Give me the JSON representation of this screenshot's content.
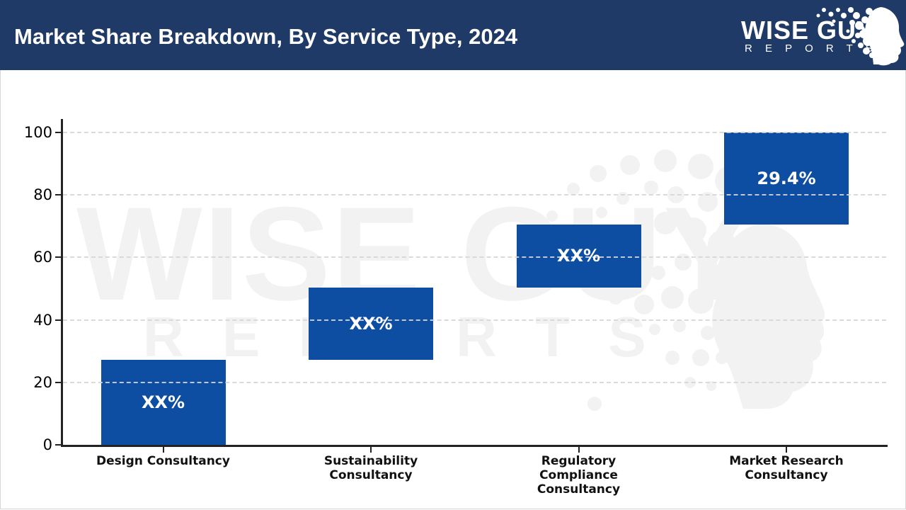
{
  "header": {
    "title": "Market Share Breakdown, By Service Type, 2024",
    "background_color": "#1f3a67",
    "logo": {
      "line1": "WISE GUY",
      "line2": "R E P O R T S"
    }
  },
  "watermark": {
    "line1": "WISE GUY",
    "line2": "R E P O R T S"
  },
  "chart_data": {
    "type": "bar",
    "subtype": "floating-segment waterfall of market share percentages",
    "title": "Market Share Breakdown, By Service Type, 2024",
    "xlabel": "",
    "ylabel": "",
    "ylim": [
      0,
      100
    ],
    "yticks": [
      0,
      20,
      40,
      60,
      80,
      100
    ],
    "grid": "horizontal dashed gridlines",
    "legend": "none",
    "bar_color": "#0d4da2",
    "bar_label_color": "#ffffff",
    "categories": [
      "Design Consultancy",
      "Sustainability Consultancy",
      "Regulatory Compliance Consultancy",
      "Market Research Consultancy"
    ],
    "segments": [
      {
        "category": "Design Consultancy",
        "category_lines": [
          "Design Consultancy"
        ],
        "start": 0,
        "end": 27.2,
        "value": 27.2,
        "label": "XX%"
      },
      {
        "category": "Sustainability Consultancy",
        "category_lines": [
          "Sustainability",
          "Consultancy"
        ],
        "start": 27.2,
        "end": 50.3,
        "value": 23.1,
        "label": "XX%"
      },
      {
        "category": "Regulatory Compliance Consultancy",
        "category_lines": [
          "Regulatory",
          "Compliance",
          "Consultancy"
        ],
        "start": 50.3,
        "end": 70.6,
        "value": 20.3,
        "label": "XX%"
      },
      {
        "category": "Market Research Consultancy",
        "category_lines": [
          "Market Research",
          "Consultancy"
        ],
        "start": 70.6,
        "end": 100,
        "value": 29.4,
        "label": "29.4%"
      }
    ]
  }
}
